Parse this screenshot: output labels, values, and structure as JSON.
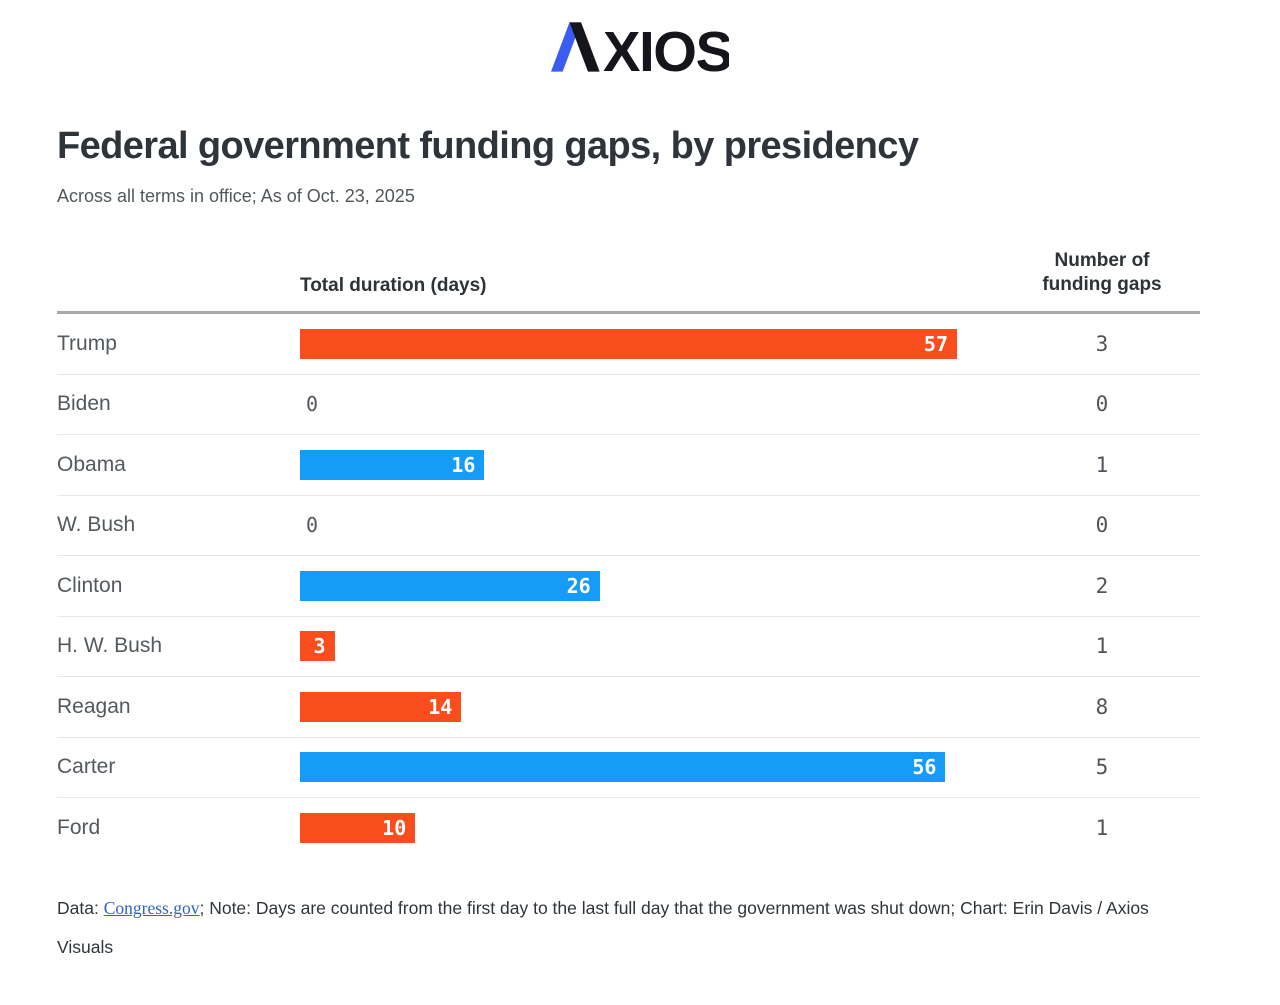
{
  "logo": {
    "text": "AXIOS",
    "tail": "XIOS",
    "blue": "#3a5cf0",
    "dark": "#15151b"
  },
  "header": {
    "title": "Federal government funding gaps, by presidency",
    "subtitle": "Across all terms in office; As of Oct. 23, 2025"
  },
  "chart_data": {
    "type": "bar",
    "orientation": "horizontal",
    "title": "Federal government funding gaps, by presidency",
    "subtitle": "Across all terms in office; As of Oct. 23, 2025",
    "duration_column_label": "Total duration (days)",
    "gaps_column_label": "Number of funding gaps",
    "max_value": 57,
    "xlim": [
      0,
      57
    ],
    "grid": false,
    "legend": false,
    "colors": {
      "orange": "#fa4d1e",
      "blue": "#169bf8"
    },
    "rows": [
      {
        "president": "Trump",
        "duration_days": 57,
        "funding_gaps": 3,
        "color": "orange"
      },
      {
        "president": "Biden",
        "duration_days": 0,
        "funding_gaps": 0,
        "color": "none"
      },
      {
        "president": "Obama",
        "duration_days": 16,
        "funding_gaps": 1,
        "color": "blue"
      },
      {
        "president": "W. Bush",
        "duration_days": 0,
        "funding_gaps": 0,
        "color": "none"
      },
      {
        "president": "Clinton",
        "duration_days": 26,
        "funding_gaps": 2,
        "color": "blue"
      },
      {
        "president": "H. W. Bush",
        "duration_days": 3,
        "funding_gaps": 1,
        "color": "orange"
      },
      {
        "president": "Reagan",
        "duration_days": 14,
        "funding_gaps": 8,
        "color": "orange"
      },
      {
        "president": "Carter",
        "duration_days": 56,
        "funding_gaps": 5,
        "color": "blue"
      },
      {
        "president": "Ford",
        "duration_days": 10,
        "funding_gaps": 1,
        "color": "orange"
      }
    ]
  },
  "footer": {
    "prefix": "Data: ",
    "link_text": "Congress.gov",
    "suffix": "; Note: Days are counted from the first day to the last full day that the government was shut down; Chart: Erin Davis / Axios Visuals"
  }
}
